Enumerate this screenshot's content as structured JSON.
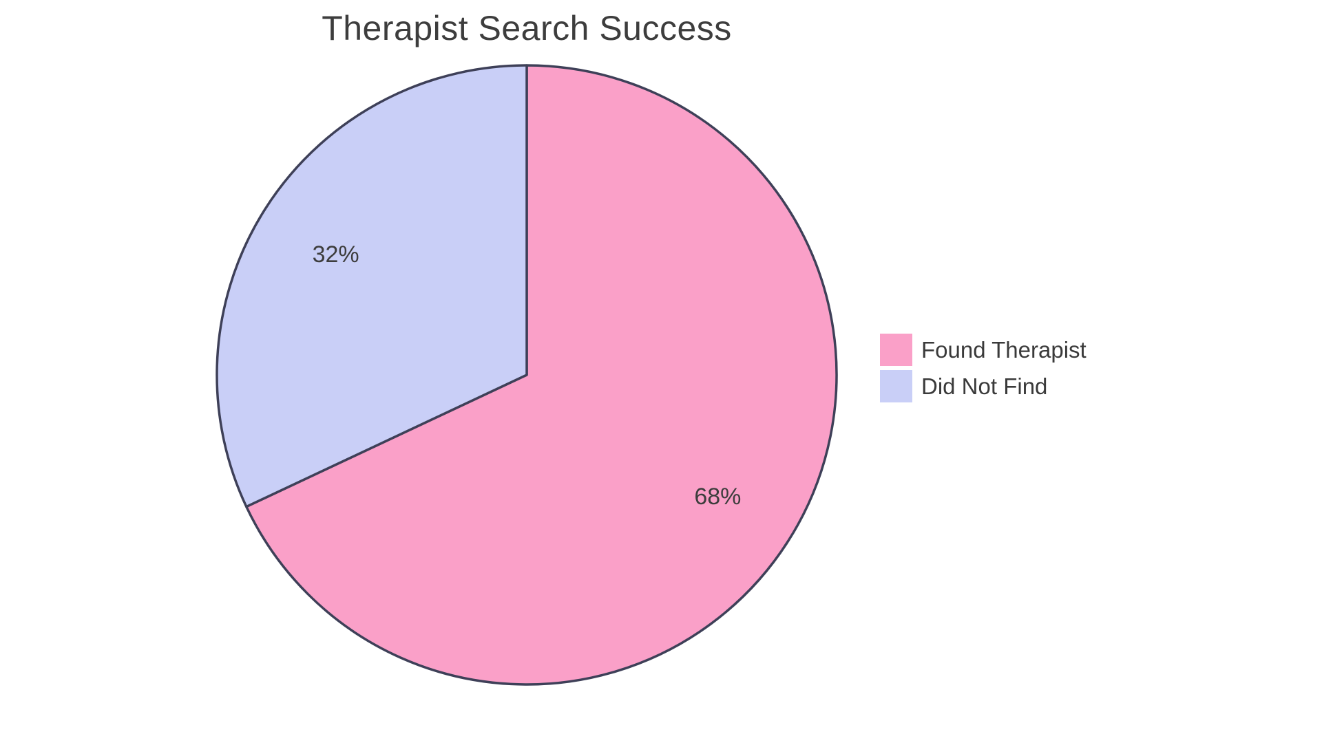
{
  "title": "Therapist Search Success",
  "chart_data": {
    "type": "pie",
    "title": "Therapist Search Success",
    "labels": [
      "Found Therapist",
      "Did Not Find"
    ],
    "values": [
      68,
      32
    ],
    "value_labels": [
      "68%",
      "32%"
    ],
    "colors": [
      "#FAA0C8",
      "#C9CFF7"
    ],
    "stroke_color": "#3E4058",
    "stroke_width": 3.5,
    "start_angle_deg": 0,
    "direction": "clockwise",
    "legend_position": "right",
    "label_color": "#3d3d3d",
    "grid": false
  },
  "legend": {
    "items": [
      {
        "label": "Found Therapist",
        "color": "#FAA0C8"
      },
      {
        "label": "Did Not Find",
        "color": "#C9CFF7"
      }
    ]
  }
}
